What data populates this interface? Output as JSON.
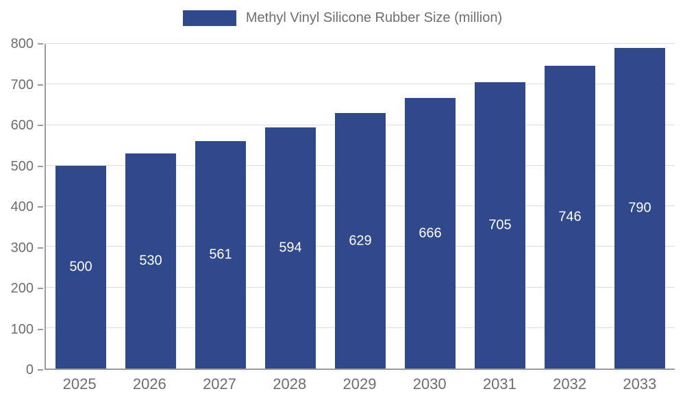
{
  "chart_data": {
    "type": "bar",
    "title": "",
    "legend": "Methyl Vinyl Silicone Rubber Size (million)",
    "categories": [
      "2025",
      "2026",
      "2027",
      "2028",
      "2029",
      "2030",
      "2031",
      "2032",
      "2033"
    ],
    "values": [
      500,
      530,
      561,
      594,
      629,
      666,
      705,
      746,
      790
    ],
    "xlabel": "",
    "ylabel": "",
    "ylim": [
      0,
      800
    ],
    "ytick_step": 100,
    "grid": true,
    "legend_position": "top",
    "value_labels": "inside-middle",
    "colors": {
      "bar": "#30498a",
      "grid": "#dcdcdc",
      "axis": "#9a9a9a",
      "tick_text": "#6e6e6e",
      "value_label": "#ffffff"
    }
  }
}
